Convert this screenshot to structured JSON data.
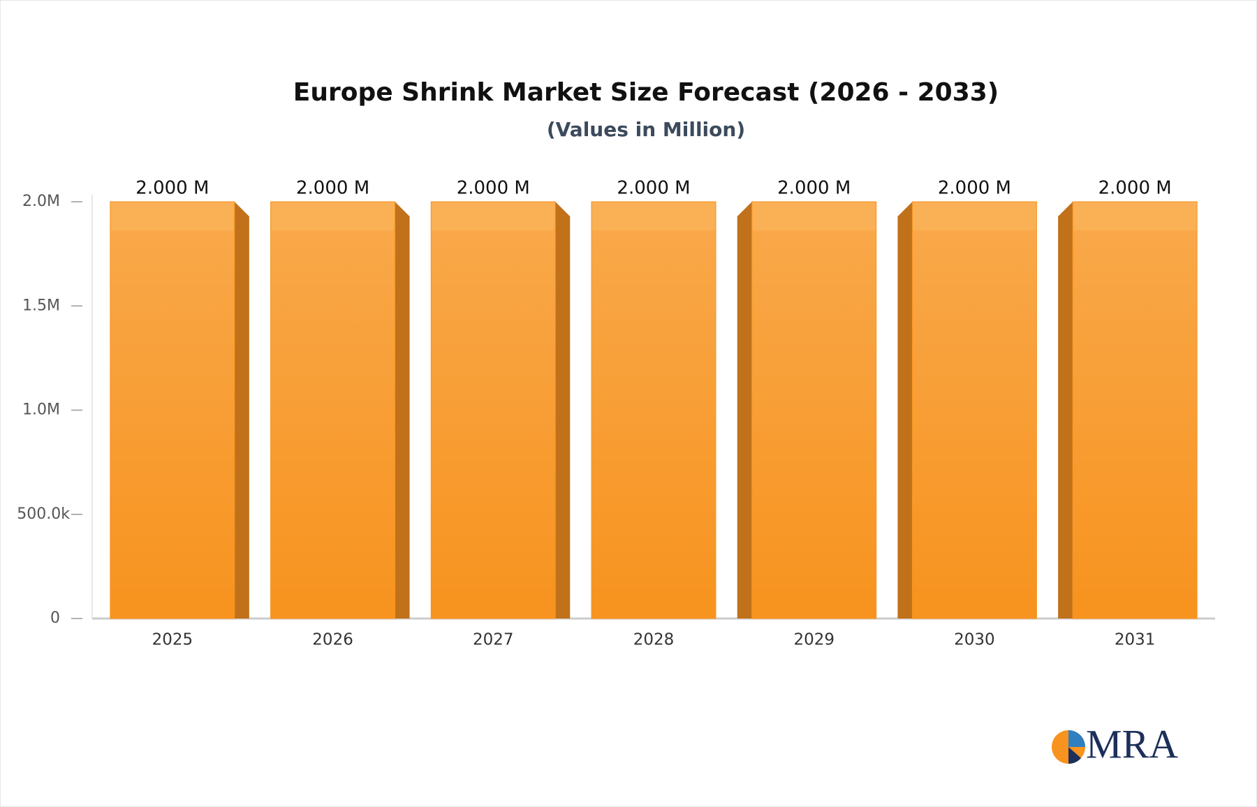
{
  "chart_data": {
    "type": "bar",
    "title": "Europe Shrink Market Size Forecast (2026 - 2033)",
    "subtitle": "(Values in Million)",
    "categories": [
      "2025",
      "2026",
      "2027",
      "2028",
      "2029",
      "2030",
      "2031"
    ],
    "values": [
      2000000,
      2000000,
      2000000,
      2000000,
      2000000,
      2000000,
      2000000
    ],
    "value_labels": [
      "2.000 M",
      "2.000 M",
      "2.000 M",
      "2.000 M",
      "2.000 M",
      "2.000 M",
      "2.000 M"
    ],
    "color": "#f7941f",
    "ylim": [
      0,
      2000000
    ],
    "yticks": [
      0,
      {
        "value": 500000,
        "label": "500.0k"
      },
      {
        "value": 1000000,
        "label": "1.0M"
      },
      {
        "value": 1500000,
        "label": "1.5M"
      },
      {
        "value": 2000000,
        "label": "2.0M"
      }
    ],
    "grid": false
  },
  "logo": "MRA"
}
